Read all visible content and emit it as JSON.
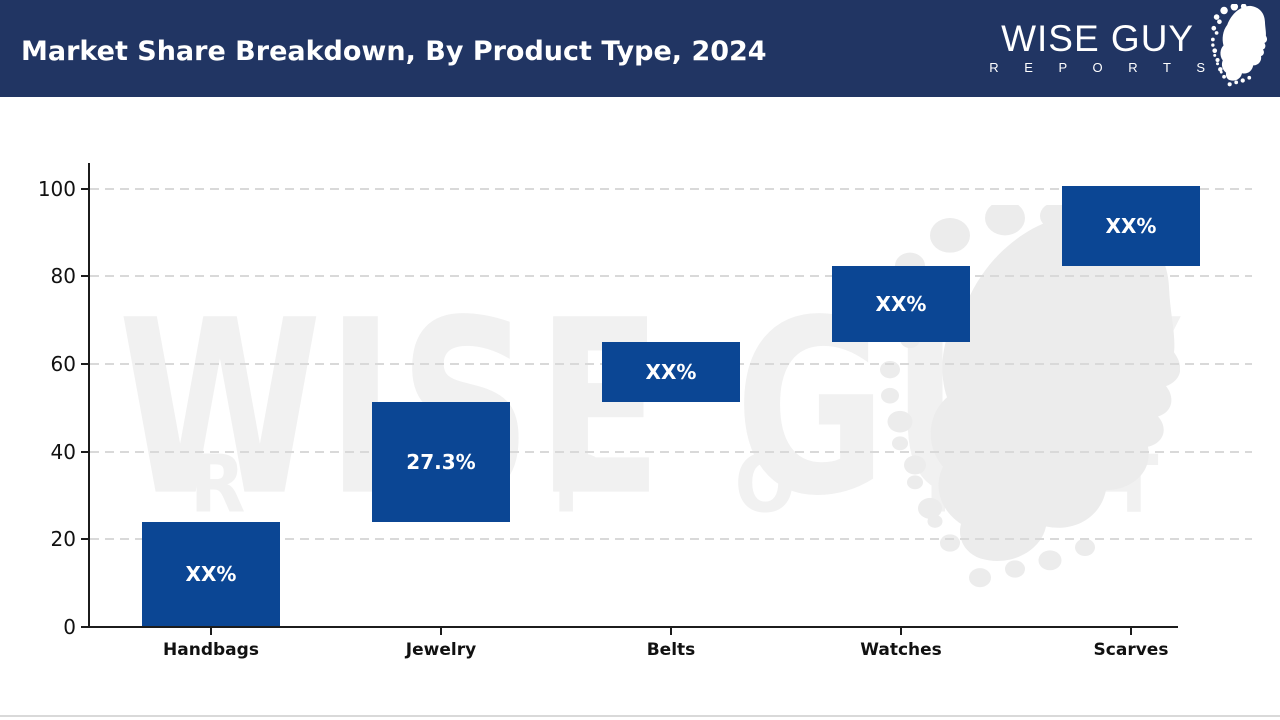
{
  "header": {
    "title": "Market Share Breakdown, By Product Type, 2024",
    "logo": {
      "line1": "WISE GUY",
      "line2": "R E P O R T S"
    }
  },
  "watermark": {
    "line1": "WISE GUY",
    "line2": "R E P O R T S"
  },
  "chart_data": {
    "type": "bar",
    "subtype": "waterfall-floating-bars",
    "title": "Market Share Breakdown, By Product Type, 2024",
    "categories": [
      "Handbags",
      "Jewelry",
      "Belts",
      "Watches",
      "Scarves"
    ],
    "segments": [
      {
        "category": "Handbags",
        "start": 0,
        "end": 24,
        "label": "XX%"
      },
      {
        "category": "Jewelry",
        "start": 24,
        "end": 51.3,
        "label": "27.3%"
      },
      {
        "category": "Belts",
        "start": 51.3,
        "end": 65.1,
        "label": "XX%"
      },
      {
        "category": "Watches",
        "start": 65.1,
        "end": 82.3,
        "label": "XX%"
      },
      {
        "category": "Scarves",
        "start": 82.3,
        "end": 100.5,
        "label": "XX%"
      }
    ],
    "xlabel": "",
    "ylabel": "",
    "yticks": [
      0,
      20,
      40,
      60,
      80,
      100
    ],
    "ylim": [
      0,
      105
    ],
    "grid": "horizontal-dashed",
    "legend": "none",
    "bar_color": "#0B4694",
    "bar_label_color": "#ffffff",
    "gridline_color": "#d9d9d9",
    "axis_color": "#1c1c1c",
    "tick_label_color": "#111111"
  },
  "colors": {
    "header_bg": "#213563",
    "page_bg": "#ffffff",
    "watermark": "#f1f1f1",
    "bottom_line": "#d9d9d9"
  }
}
